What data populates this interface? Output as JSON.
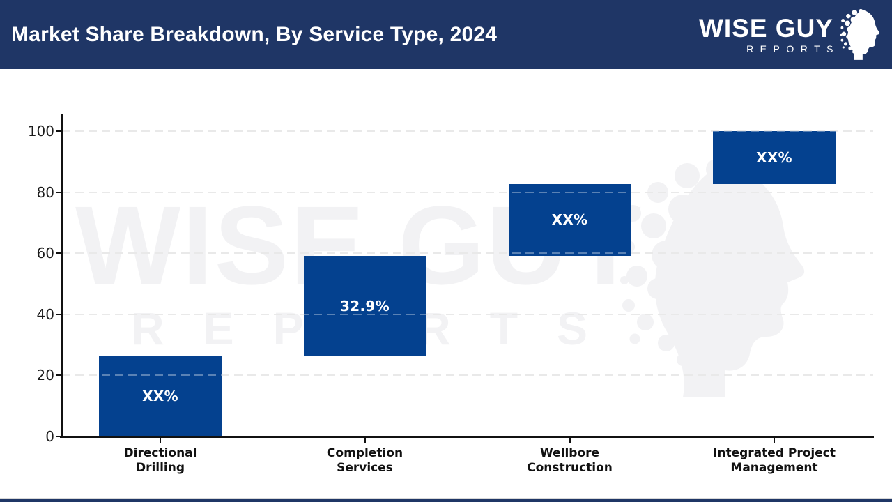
{
  "header": {
    "title": "Market Share Breakdown, By Service Type, 2024",
    "logo": {
      "line1": "WISE GUY",
      "line2": "REPORTS"
    }
  },
  "watermark": {
    "line1": "WISE GUY",
    "line2": "REPORTS"
  },
  "colors": {
    "header_bg": "#1F3666",
    "bar": "#04418F",
    "grid": "#DEDEDE",
    "axis": "#111111",
    "watermark": "#F2F2F4",
    "bar_label": "#FFFFFF"
  },
  "chart_data": {
    "type": "bar",
    "subtype": "waterfall",
    "title": "Market Share Breakdown, By Service Type, 2024",
    "xlabel": "",
    "ylabel": "",
    "ylim": [
      0,
      100
    ],
    "yticks": [
      0,
      20,
      40,
      60,
      80,
      100
    ],
    "grid": "horizontal-dashed",
    "legend": "none",
    "categories": [
      "Directional Drilling",
      "Completion Services",
      "Wellbore Construction",
      "Integrated Project Management"
    ],
    "bars": [
      {
        "category": "Directional Drilling",
        "category_lines": [
          "Directional",
          "Drilling"
        ],
        "base": 0,
        "value": 26.3,
        "top": 26.3,
        "label": "XX%"
      },
      {
        "category": "Completion Services",
        "category_lines": [
          "Completion",
          "Services"
        ],
        "base": 26.3,
        "value": 32.9,
        "top": 59.2,
        "label": "32.9%"
      },
      {
        "category": "Wellbore Construction",
        "category_lines": [
          "Wellbore",
          "Construction"
        ],
        "base": 59.2,
        "value": 23.4,
        "top": 82.6,
        "label": "XX%"
      },
      {
        "category": "Integrated Project Management",
        "category_lines": [
          "Integrated Project",
          "Management"
        ],
        "base": 82.6,
        "value": 17.4,
        "top": 100,
        "label": "XX%"
      }
    ]
  }
}
